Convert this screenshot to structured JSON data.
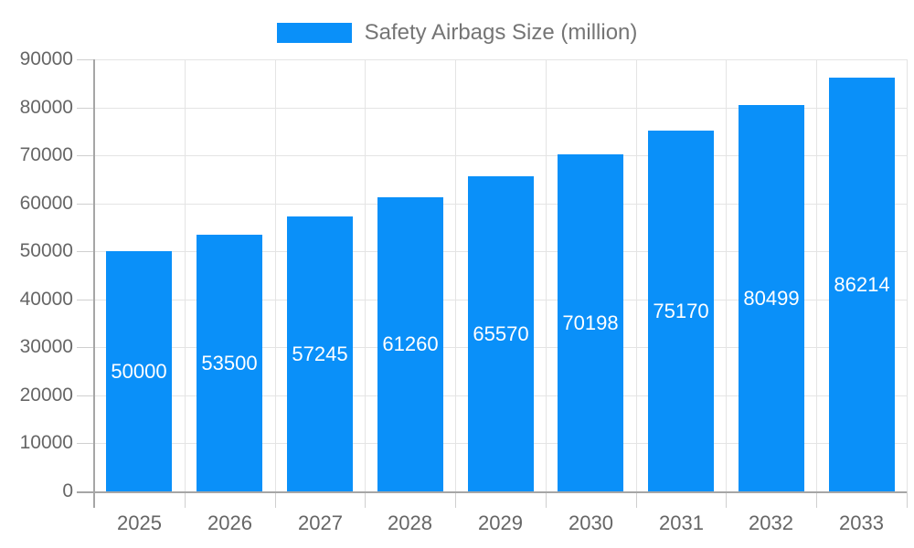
{
  "chart_data": {
    "type": "bar",
    "title": "Safety Airbags Size (million)",
    "legend": {
      "position": "top",
      "entries": [
        "Safety Airbags Size (million)"
      ]
    },
    "categories": [
      "2025",
      "2026",
      "2027",
      "2028",
      "2029",
      "2030",
      "2031",
      "2032",
      "2033"
    ],
    "values": [
      50000,
      53500,
      57245,
      61260,
      65570,
      70198,
      75170,
      80499,
      86214
    ],
    "bar_value_labels": [
      "50000",
      "53500",
      "57245",
      "61260",
      "65570",
      "70198",
      "75170",
      "80499",
      "86214"
    ],
    "xlabel": "",
    "ylabel": "",
    "ylim": [
      0,
      90000
    ],
    "ytick_step": 10000,
    "ytick_labels": [
      "0",
      "10000",
      "20000",
      "30000",
      "40000",
      "50000",
      "60000",
      "70000",
      "80000",
      "90000"
    ],
    "grid": true,
    "colors": {
      "bar": "#0a90f9",
      "bar_value_text": "#ffffff",
      "gridline": "#e4e4e4",
      "tick_mark": "#cfcfcf",
      "axis_line": "#a6a6a6",
      "tick_text": "#666666",
      "legend_text": "#757575"
    }
  }
}
